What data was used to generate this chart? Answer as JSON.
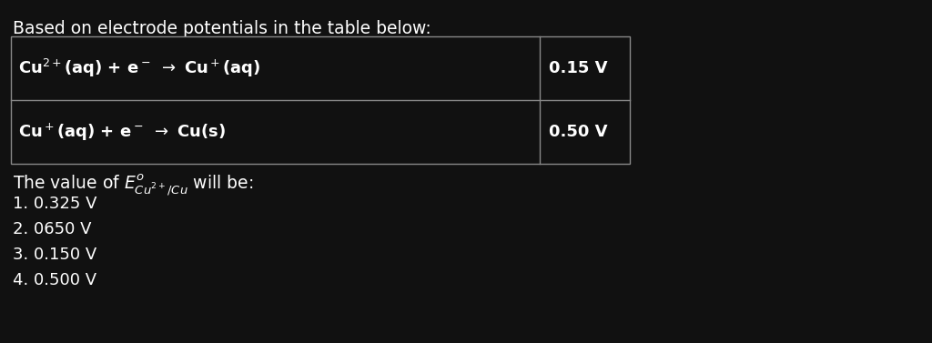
{
  "background_color": "#111111",
  "text_color": "#ffffff",
  "title_text": "Based on electrode potentials in the table below:",
  "table": {
    "row1_col1": "Cu$^{2+}$(aq) + e$^-$ → Cu$^+$(aq)",
    "row2_col1": "Cu$^+$(aq) + e$^-$ → Cu(s)",
    "col2": [
      "0.15 V",
      "0.50 V"
    ],
    "border_color": "#888888",
    "text_color": "#ffffff"
  },
  "question": "The value of $E^{o}_{Cu^{2+}/Cu}$ will be:",
  "options": [
    "1. 0.325 V",
    "2. 0650 V",
    "3. 0.150 V",
    "4. 0.500 V"
  ],
  "figsize": [
    10.24,
    3.77
  ],
  "dpi": 100
}
